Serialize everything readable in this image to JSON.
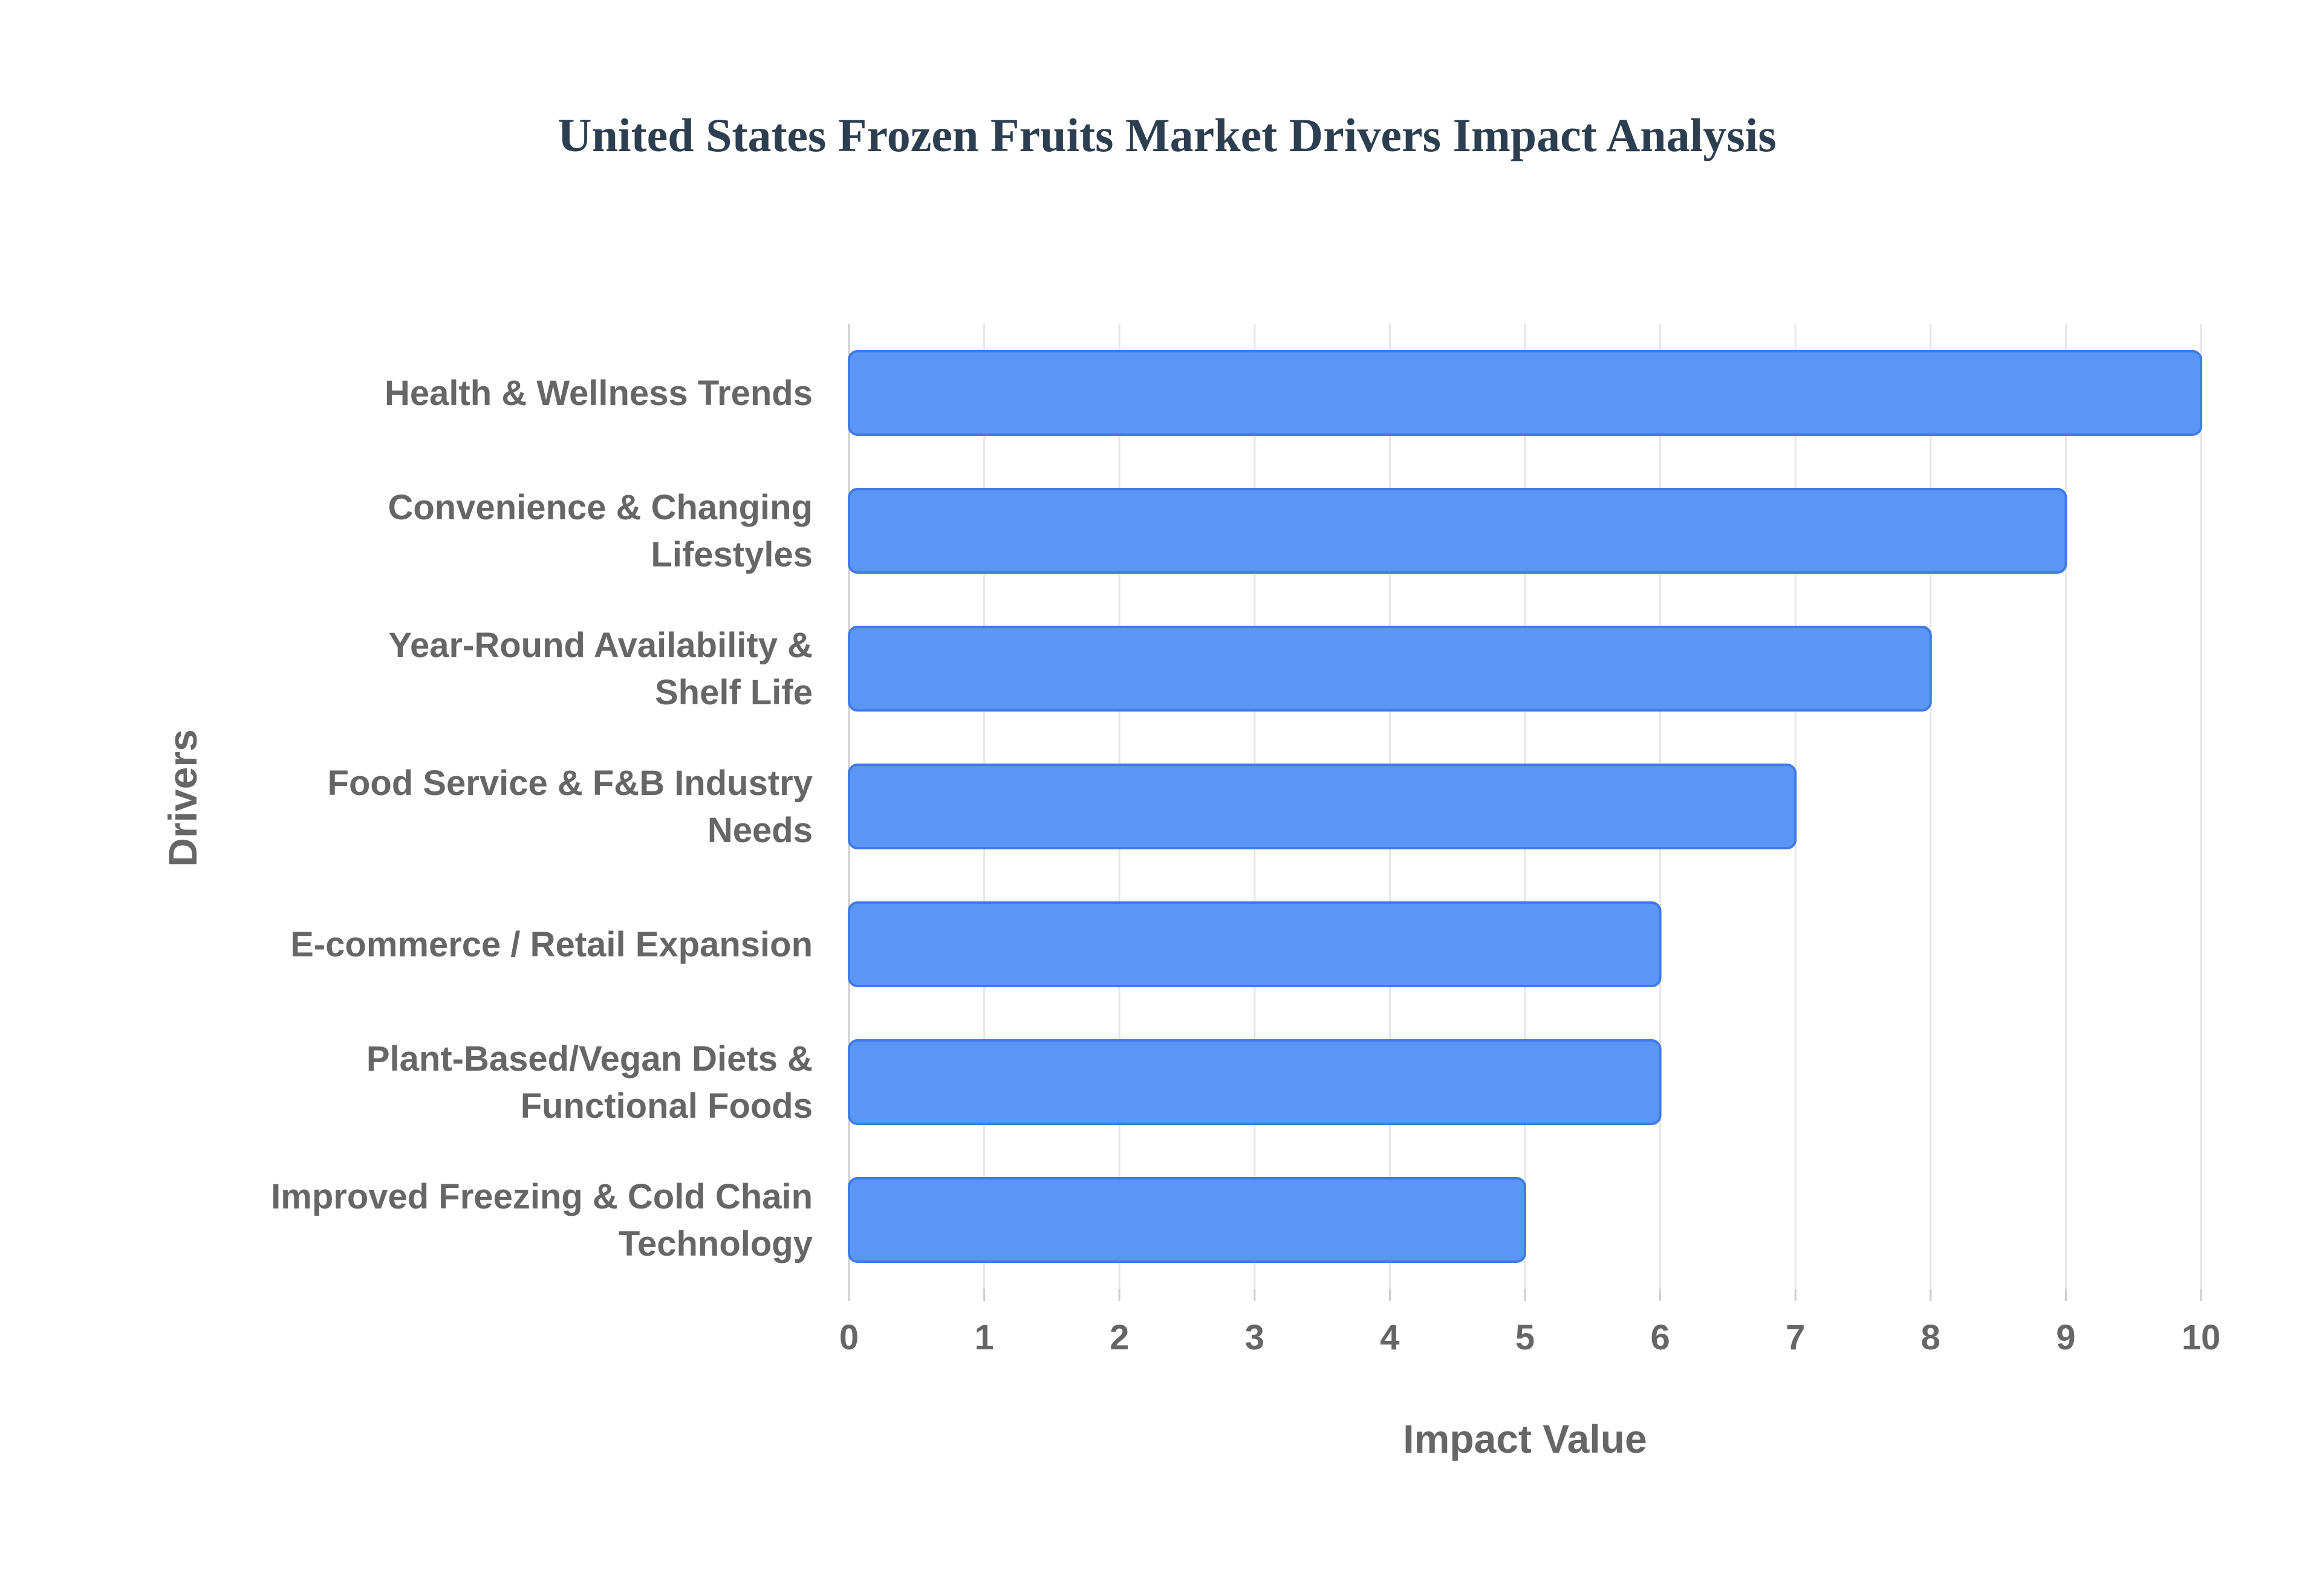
{
  "chart_data": {
    "type": "bar",
    "orientation": "horizontal",
    "title": "United States Frozen Fruits Market Drivers Impact Analysis",
    "xlabel": "Impact Value",
    "ylabel": "Drivers",
    "xlim": [
      0,
      10
    ],
    "xticks": [
      0,
      1,
      2,
      3,
      4,
      5,
      6,
      7,
      8,
      9,
      10
    ],
    "grid": true,
    "legend": "none",
    "bar_color": "#5b95f5",
    "bar_border_color": "#3f7be6",
    "categories": [
      [
        "Health & Wellness Trends"
      ],
      [
        "Convenience & Changing",
        "Lifestyles"
      ],
      [
        "Year-Round Availability &",
        "Shelf Life"
      ],
      [
        "Food Service & F&B Industry",
        "Needs"
      ],
      [
        "E-commerce / Retail Expansion"
      ],
      [
        "Plant-Based/Vegan Diets &",
        "Functional Foods"
      ],
      [
        "Improved Freezing & Cold Chain",
        "Technology"
      ]
    ],
    "values": [
      10,
      9,
      8,
      7,
      6,
      6,
      5
    ]
  }
}
